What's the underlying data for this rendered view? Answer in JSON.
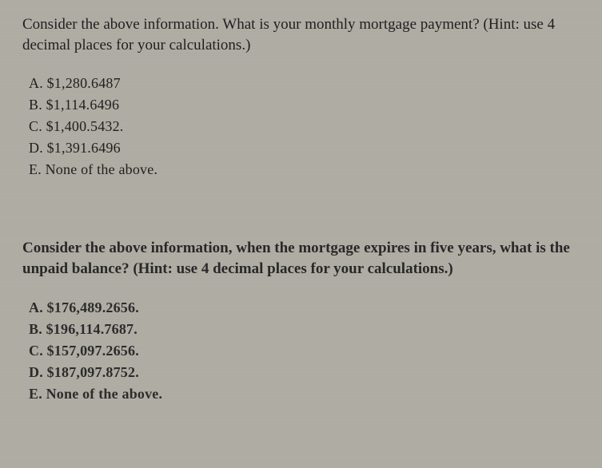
{
  "question1": {
    "prompt": "Consider the above information. What is your monthly mortgage payment? (Hint: use 4 decimal places for your calculations.)",
    "options": {
      "A": "A. $1,280.6487",
      "B": "B. $1,114.6496",
      "C": "C. $1,400.5432.",
      "D": "D. $1,391.6496",
      "E": "E. None of the above."
    }
  },
  "question2": {
    "prompt": "Consider the above information, when the mortgage expires in five years, what is the unpaid balance? (Hint: use 4 decimal places for your calculations.)",
    "options": {
      "A": "A. $176,489.2656.",
      "B": "B. $196,114.7687.",
      "C": "C. $157,097.2656.",
      "D": "D. $187,097.8752.",
      "E": "E. None of the above."
    }
  },
  "styling": {
    "background_color": "#b0ada4",
    "text_color": "#1f1f1f",
    "font_family": "Georgia, Times New Roman, serif",
    "question_fontsize": 19,
    "option_fontsize": 18
  }
}
